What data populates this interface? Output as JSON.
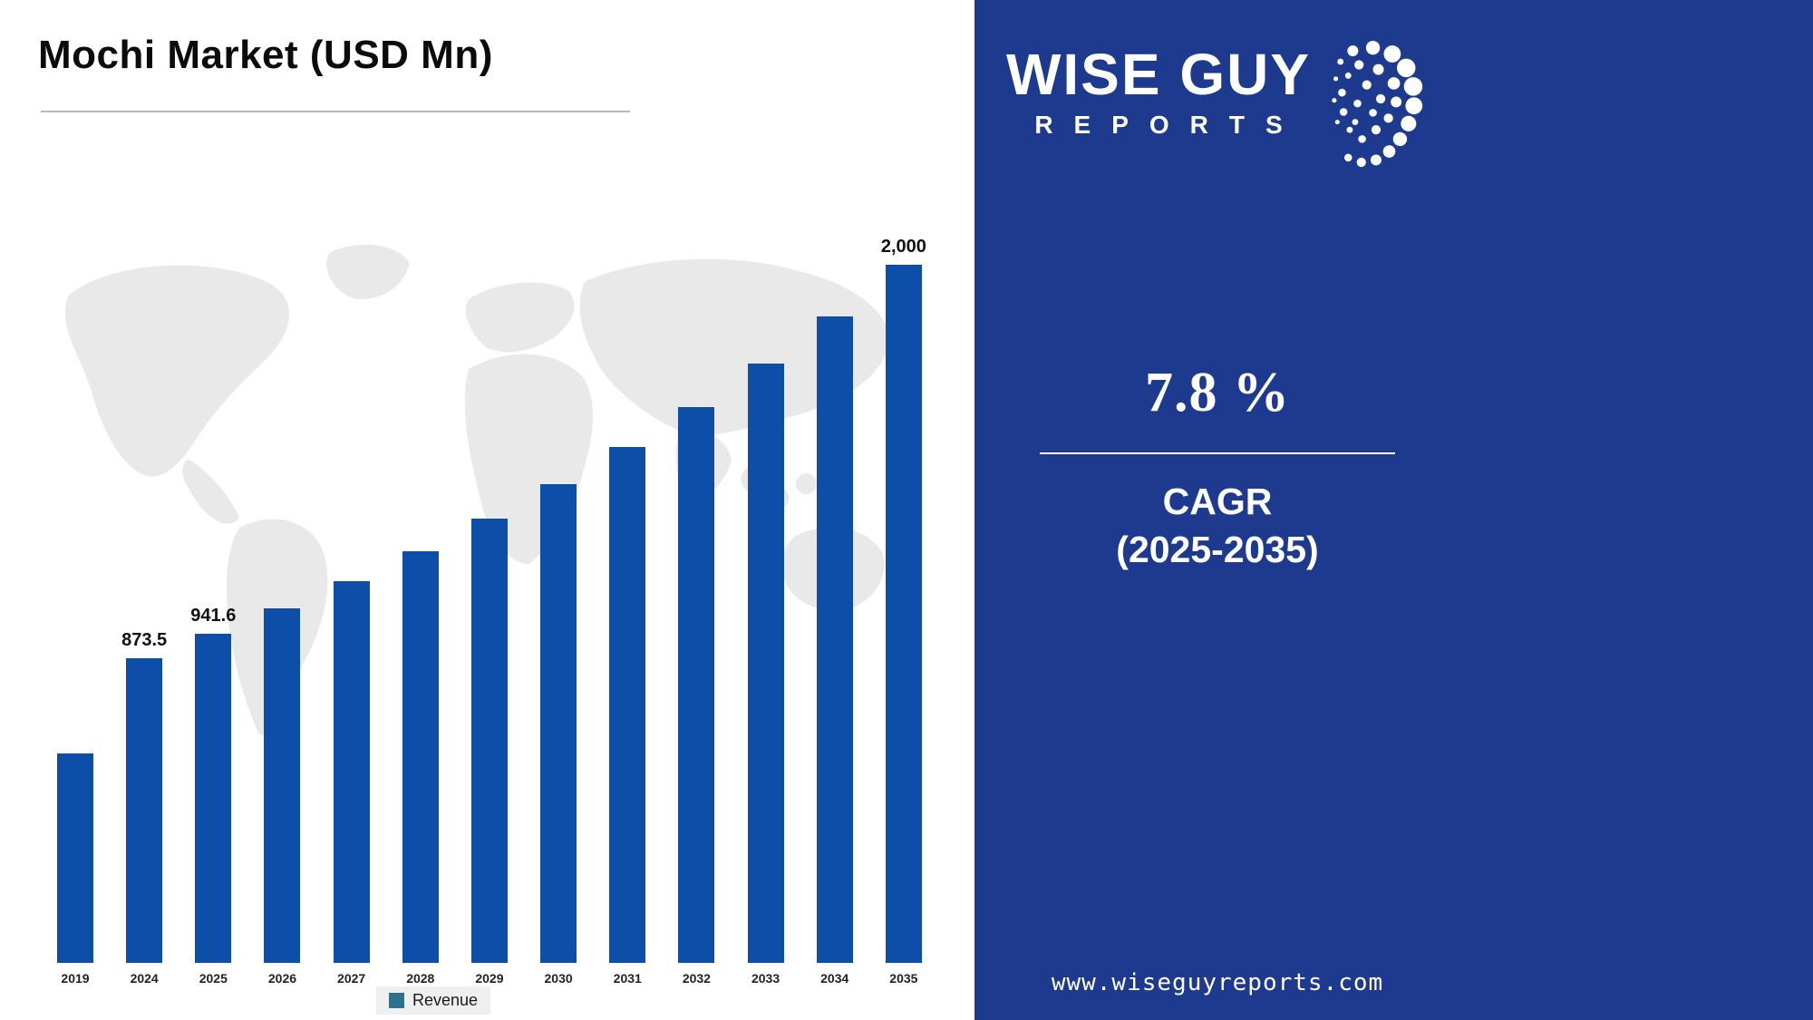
{
  "page": {
    "title": "Mochi Market (USD Mn)"
  },
  "chart_data": {
    "type": "bar",
    "title": "Mochi Market (USD Mn)",
    "categories": [
      "2019",
      "2024",
      "2025",
      "2026",
      "2027",
      "2028",
      "2029",
      "2030",
      "2031",
      "2032",
      "2033",
      "2034",
      "2035"
    ],
    "values": [
      600,
      873.5,
      941.6,
      1015.0,
      1094.2,
      1179.5,
      1271.6,
      1370.7,
      1477.6,
      1592.9,
      1717.1,
      1851.1,
      2000
    ],
    "bar_labels": [
      "",
      "873.5",
      "941.6",
      "",
      "",
      "",
      "",
      "",
      "",
      "",
      "",
      "",
      "2,000"
    ],
    "series_name": "Revenue",
    "xlabel": "",
    "ylabel": "",
    "ylim": [
      0,
      2100
    ],
    "grid": false,
    "legend_position": "bottom",
    "bar_color": "#0d4fa8"
  },
  "legend": {
    "label": "Revenue",
    "marker_color": "#2b7291"
  },
  "sidebar": {
    "background": "#1d3a8e",
    "logo_line1": "WISE GUY",
    "logo_line2": "REPORTS",
    "cagr_value": "7.8 %",
    "cagr_line1": "CAGR",
    "cagr_line2": "(2025-2035)",
    "website": "www.wiseguyreports.com"
  }
}
